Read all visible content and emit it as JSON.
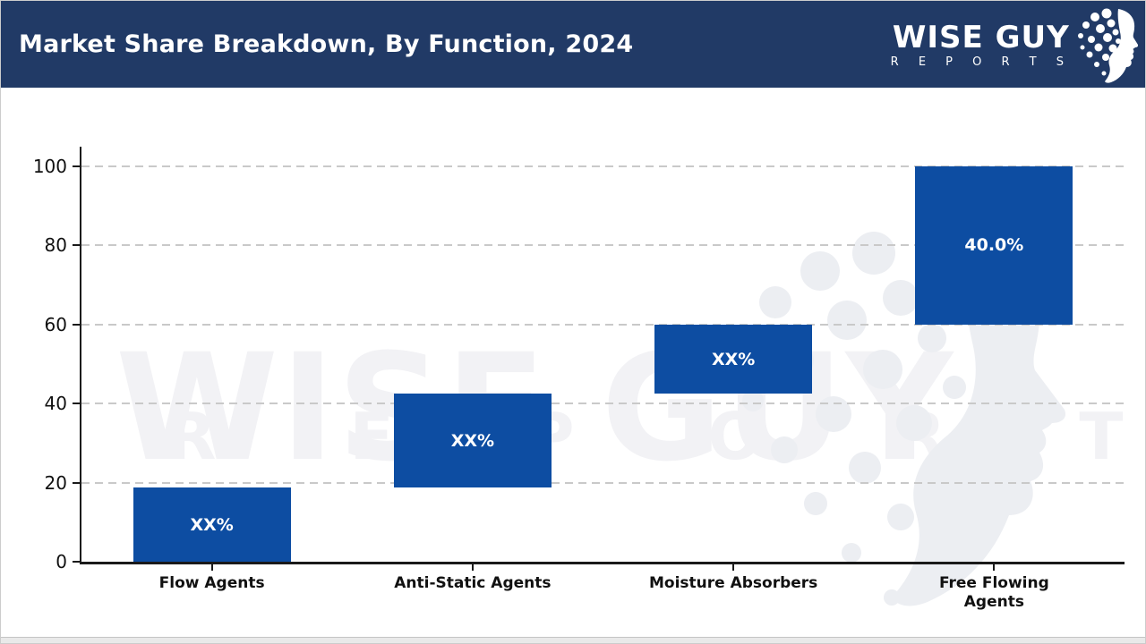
{
  "header": {
    "title": "Market Share Breakdown, By Function, 2024",
    "bg_color": "#213a66",
    "logo": {
      "name": "WISE GUY",
      "sub": "R E P O R T S"
    }
  },
  "watermark": {
    "line1": "WISE GUY",
    "line2": "R E P O R T S"
  },
  "chart_data": {
    "type": "bar",
    "variant": "waterfall-floating-bars",
    "title": "Market Share Breakdown, By Function, 2024",
    "categories": [
      "Flow Agents",
      "Anti-Static Agents",
      "Moisture Absorbers",
      "Free Flowing Agents"
    ],
    "bars": [
      {
        "category": "Flow Agents",
        "tick_lines": [
          "Flow Agents"
        ],
        "start": 0,
        "end": 18.75,
        "label": "XX%"
      },
      {
        "category": "Anti-Static Agents",
        "tick_lines": [
          "Anti-Static Agents"
        ],
        "start": 18.75,
        "end": 42.5,
        "label": "XX%"
      },
      {
        "category": "Moisture Absorbers",
        "tick_lines": [
          "Moisture Absorbers"
        ],
        "start": 42.5,
        "end": 60,
        "label": "XX%"
      },
      {
        "category": "Free Flowing Agents",
        "tick_lines": [
          "Free Flowing",
          "Agents"
        ],
        "start": 60,
        "end": 100,
        "label": "40.0%"
      }
    ],
    "yticks": [
      "0",
      "20",
      "40",
      "60",
      "80",
      "100"
    ],
    "ylim": [
      0,
      105
    ],
    "xlabel": "",
    "ylabel": "",
    "bar_color": "#0d4da2",
    "grid": {
      "show": true,
      "style": "dashed",
      "color": "#c9c9c9"
    },
    "axis_color": "#1a1a1a",
    "legend": "none"
  }
}
